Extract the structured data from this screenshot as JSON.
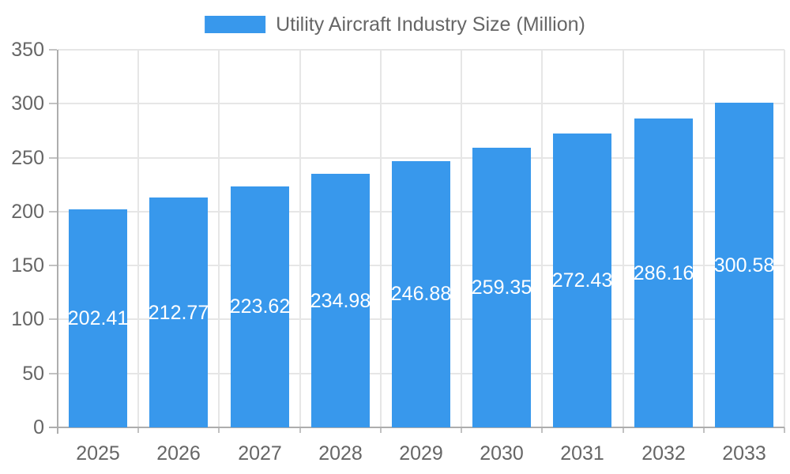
{
  "chart_data": {
    "type": "bar",
    "title": "Utility Aircraft Industry Size (Million)",
    "categories": [
      "2025",
      "2026",
      "2027",
      "2028",
      "2029",
      "2030",
      "2031",
      "2032",
      "2033"
    ],
    "series": [
      {
        "name": "Utility Aircraft Industry Size (Million)",
        "values": [
          202.41,
          212.77,
          223.62,
          234.98,
          246.88,
          259.35,
          272.43,
          286.16,
          300.58
        ],
        "color": "#3898EC"
      }
    ],
    "value_labels": [
      "202.41",
      "212.77",
      "223.62",
      "234.98",
      "246.88",
      "259.35",
      "272.43",
      "286.16",
      "300.58"
    ],
    "xlabel": "",
    "ylabel": "",
    "ylim": [
      0,
      350
    ],
    "yticks": [
      0,
      50,
      100,
      150,
      200,
      250,
      300,
      350
    ],
    "grid": true,
    "legend_position": "top",
    "value_labels_inside_bars": true
  },
  "colors": {
    "bar": "#3898EC",
    "grid_line": "#E6E6E6",
    "axis_line": "#ADADAD",
    "tick_mark": "#C2C2C2",
    "tick_label_text": "#666666",
    "legend_text": "#666666",
    "value_label_text": "#FFFFFF",
    "background": "#FFFFFF"
  }
}
